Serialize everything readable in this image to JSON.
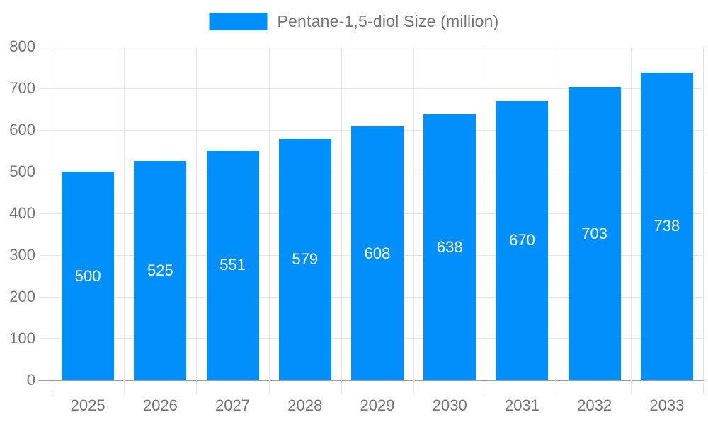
{
  "legend": {
    "label": "Pentane-1,5-diol Size (million)"
  },
  "chart_data": {
    "type": "bar",
    "title": "Pentane-1,5-diol Size (million)",
    "categories": [
      "2025",
      "2026",
      "2027",
      "2028",
      "2029",
      "2030",
      "2031",
      "2032",
      "2033"
    ],
    "series": [
      {
        "name": "Pentane-1,5-diol Size (million)",
        "values": [
          500,
          525,
          551,
          579,
          608,
          638,
          670,
          703,
          738
        ]
      }
    ],
    "xlabel": "",
    "ylabel": "",
    "ylim": [
      0,
      800
    ],
    "yticks": [
      0,
      100,
      200,
      300,
      400,
      500,
      600,
      700,
      800
    ],
    "grid": true,
    "legend_position": "top",
    "bar_labels_inside": true
  },
  "colors": {
    "bar": "#008FFB",
    "bar_label": "#ffffff",
    "axis_text": "#757575",
    "legend_text": "#757575",
    "gridline": "#e7e7e7",
    "axis_line": "#9e9e9e",
    "background": "#ffffff"
  }
}
